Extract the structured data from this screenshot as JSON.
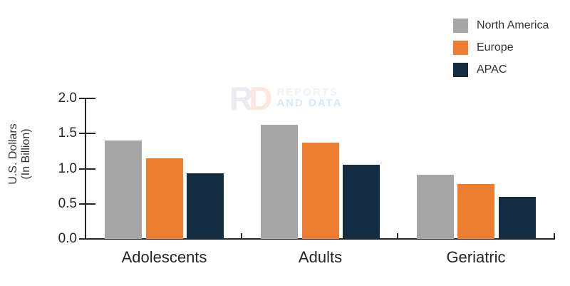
{
  "chart_data": {
    "type": "bar",
    "title": "",
    "categories": [
      "Adolescents",
      "Adults",
      "Geriatric"
    ],
    "series": [
      {
        "name": "North America",
        "color": "#a6a6a6",
        "values": [
          1.4,
          1.62,
          0.91
        ]
      },
      {
        "name": "Europe",
        "color": "#ed7d31",
        "values": [
          1.15,
          1.37,
          0.78
        ]
      },
      {
        "name": "APAC",
        "color": "#132c42",
        "values": [
          0.93,
          1.06,
          0.6
        ]
      }
    ],
    "ylabel_line1": "U.S. Dollars",
    "ylabel_line2": "(In Billion)",
    "xlabel": "",
    "ylim": [
      0.0,
      2.0
    ],
    "ytick_labels": [
      "2.0",
      "1.5",
      "1.0",
      "0.5",
      "0.0"
    ],
    "grid": false,
    "legend_position": "top-right",
    "axis_color": "#262626",
    "text_color": "#262626"
  },
  "watermark": {
    "logo_r": "R",
    "logo_d": "D",
    "line1": "REPORTS",
    "line2": "AND DATA"
  }
}
